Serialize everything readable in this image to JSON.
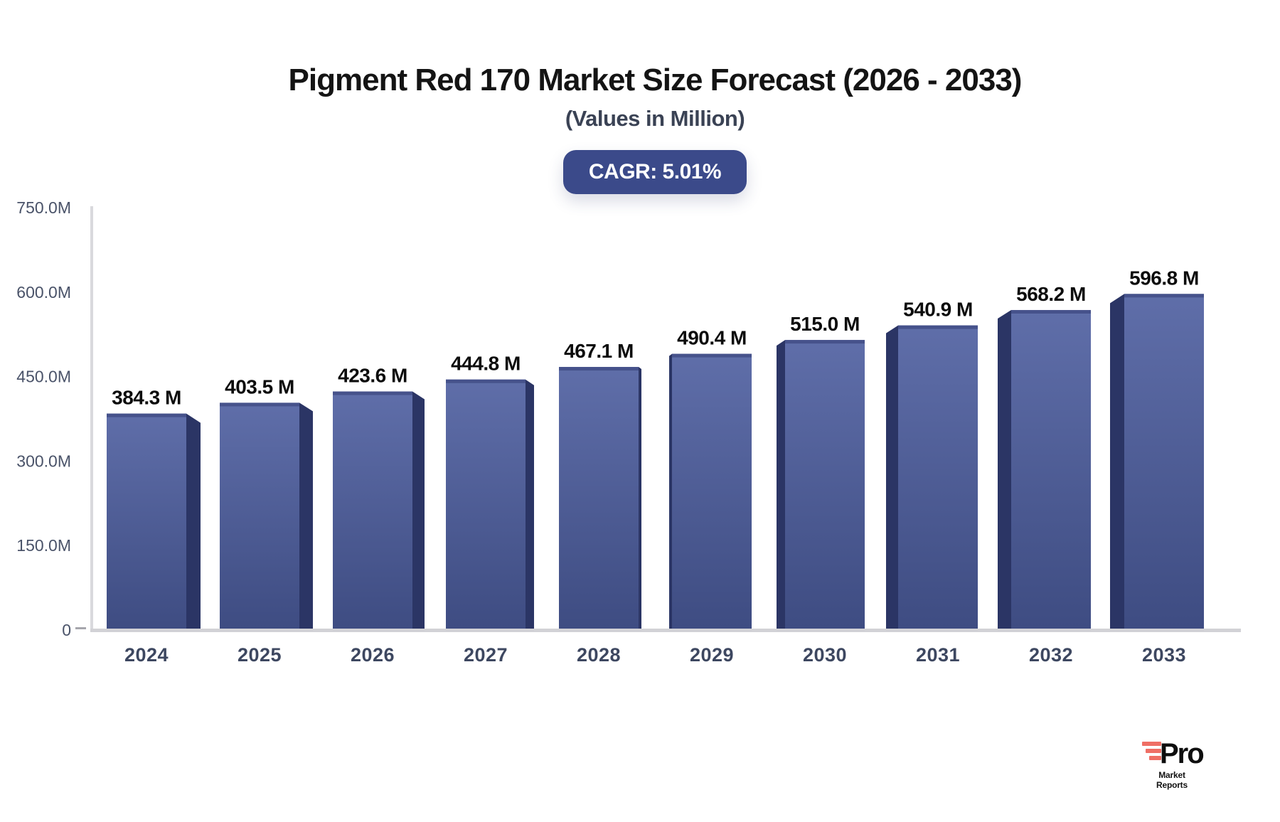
{
  "header": {
    "title": "Pigment Red 170 Market Size Forecast (2026 - 2033)",
    "subtitle": "(Values in Million)",
    "cagr_label": "CAGR: 5.01%"
  },
  "badge": {
    "background": "#3b4a8a",
    "text_color": "#ffffff"
  },
  "chart_data": {
    "type": "bar",
    "title": "Pigment Red 170 Market Size Forecast (2026 - 2033)",
    "subtitle": "(Values in Million)",
    "unit": "Million",
    "cagr_pct": 5.01,
    "categories": [
      "2024",
      "2025",
      "2026",
      "2027",
      "2028",
      "2029",
      "2030",
      "2031",
      "2032",
      "2033"
    ],
    "values": [
      384.3,
      403.5,
      423.6,
      444.8,
      467.1,
      490.4,
      515.0,
      540.9,
      568.2,
      596.8
    ],
    "value_labels": [
      "384.3 M",
      "403.5 M",
      "423.6 M",
      "444.8 M",
      "467.1 M",
      "490.4 M",
      "515.0 M",
      "540.9 M",
      "568.2 M",
      "596.8 M"
    ],
    "xlabel": "",
    "ylabel": "",
    "ylim": [
      0,
      750
    ],
    "y_ticks": [
      0,
      150,
      300,
      450,
      600,
      750
    ],
    "y_tick_labels": [
      "0",
      "150.0M",
      "300.0M",
      "450.0M",
      "600.0M",
      "750.0M"
    ],
    "grid": false,
    "legend": false,
    "bar_style": "3d-perspective",
    "colors": {
      "bar_face_top": "#5f6ea9",
      "bar_face_bottom": "#3e4c82",
      "bar_side": "#2b3565",
      "bar_top_edge": "#46528b",
      "axis_line": "#d9d9dd",
      "baseline": "#d2d2d6",
      "zero_tick": "#a6a6ac",
      "tick_text": "#4a5369",
      "year_text": "#3d4760",
      "value_text": "#0c0c0c"
    }
  },
  "logo": {
    "name": "Pro",
    "tagline": "Market Reports",
    "accent": "#ef6f65"
  }
}
